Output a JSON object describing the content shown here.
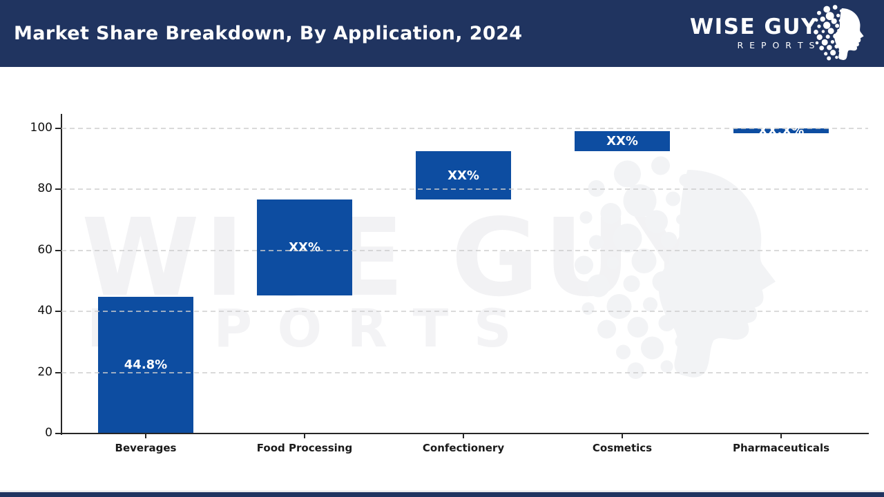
{
  "header": {
    "title": "Market Share Breakdown, By Application, 2024"
  },
  "logo": {
    "line1": "WISE GUY",
    "line2": "R E P O R T S"
  },
  "watermark": {
    "line1": "WISE GUY",
    "line2": "R E P O R T S"
  },
  "colors": {
    "header_bg": "#203460",
    "bar": "#0d4da1",
    "grid": "#d9d9d9",
    "axis": "#262626",
    "text": "#1a1a1a",
    "bar_label": "#ffffff",
    "watermark": "#f2f2f4"
  },
  "chart_data": {
    "type": "bar",
    "subtype": "waterfall",
    "title": "Market Share Breakdown, By Application, 2024",
    "xlabel": "",
    "ylabel": "",
    "categories": [
      "Beverages",
      "Food Processing",
      "Confectionery",
      "Cosmetics",
      "Pharmaceuticals"
    ],
    "segments": [
      {
        "category": "Beverages",
        "start": 0,
        "end": 44.8,
        "label": "44.8%"
      },
      {
        "category": "Food Processing",
        "start": 45.2,
        "end": 76.8,
        "label": "XX%"
      },
      {
        "category": "Confectionery",
        "start": 76.7,
        "end": 92.5,
        "label": "XX%"
      },
      {
        "category": "Cosmetics",
        "start": 92.5,
        "end": 99.1,
        "label": "XX%"
      },
      {
        "category": "Pharmaceuticals",
        "start": 98.5,
        "end": 100,
        "label": "XX.X%"
      }
    ],
    "yticks": [
      0,
      20,
      40,
      60,
      80,
      100
    ],
    "ylim": [
      0,
      105
    ],
    "grid": "horizontal-dashed",
    "legend": "none"
  }
}
